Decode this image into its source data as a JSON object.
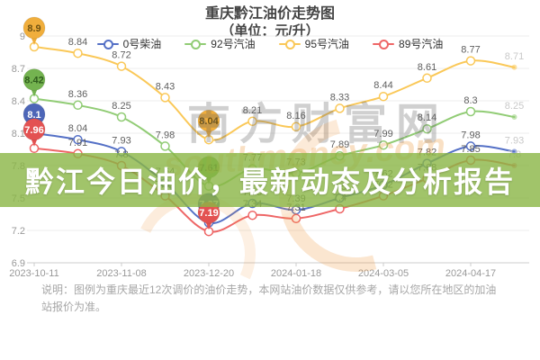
{
  "title": "重庆黔江油价走势图",
  "subtitle": "（单位：元/升）",
  "banner": {
    "text": "黔江今日油价，最新动态及分析报告",
    "bg_color": "#89b545"
  },
  "note": "说明：图例为重庆最近12次调价的油价走势，本网站油价数据仅供参考，请以您所在地区的加油站报价为准。",
  "watermark": {
    "cn": "南方财富网",
    "en": "southmoney.com",
    "orange": "#ee9633"
  },
  "chart_data": {
    "type": "line",
    "title": "重庆黔江油价走势图（单位：元/升）",
    "x_labels": [
      "2023-10-11",
      "2023-11-08",
      "2023-12-20",
      "2024-01-18",
      "2024-03-05",
      "2024-04-17"
    ],
    "x_label_point_indices": [
      0,
      2,
      4,
      6,
      8,
      10
    ],
    "points_per_series": 12,
    "y_ticks": [
      6.9,
      7.2,
      7.5,
      7.8,
      8.1,
      8.4,
      8.7,
      9
    ],
    "ylim": [
      6.9,
      9
    ],
    "grid": true,
    "legend_position": "top",
    "pin_indices": [
      0,
      4
    ],
    "last_point_faded": true,
    "series": [
      {
        "name": "0号柴油",
        "color": "#5470c6",
        "pin_color": "#4d66b8",
        "pin_text_color": "#ffffff",
        "values": [
          8.1,
          8.04,
          7.93,
          7.64,
          7.27,
          7.45,
          7.39,
          7.5,
          7.62,
          7.82,
          7.98,
          7.93
        ]
      },
      {
        "name": "92号汽油",
        "color": "#91cc75",
        "pin_color": "#74b350",
        "pin_text_color": "#2f5d1d",
        "values": [
          8.42,
          8.36,
          8.25,
          7.98,
          7.61,
          7.77,
          7.73,
          7.89,
          7.99,
          8.14,
          8.3,
          8.25
        ]
      },
      {
        "name": "95号汽油",
        "color": "#fac858",
        "pin_color": "#f0ae3c",
        "pin_text_color": "#6e5212",
        "values": [
          8.9,
          8.84,
          8.72,
          8.43,
          8.04,
          8.21,
          8.16,
          8.33,
          8.44,
          8.61,
          8.77,
          8.71
        ]
      },
      {
        "name": "89号汽油",
        "color": "#ee6666",
        "pin_color": "#e35252",
        "pin_text_color": "#ffffff",
        "values": [
          7.96,
          7.91,
          7.8,
          7.52,
          7.19,
          7.34,
          7.31,
          7.4,
          7.52,
          7.68,
          7.85,
          7.8
        ]
      }
    ]
  }
}
